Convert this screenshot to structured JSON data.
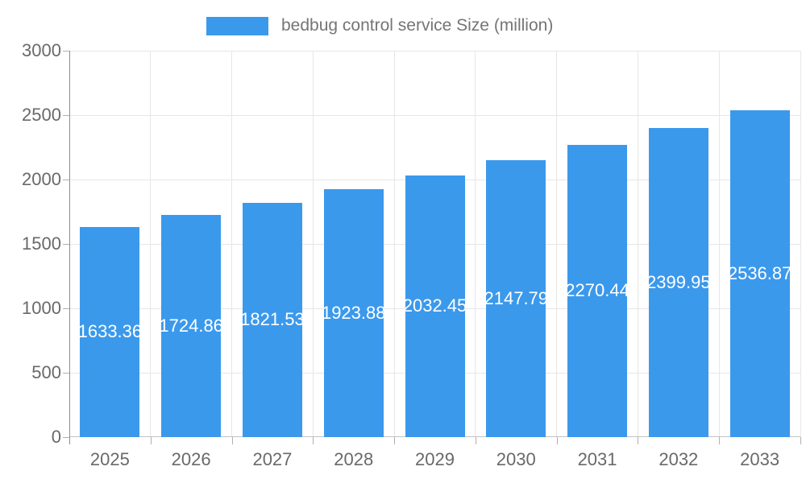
{
  "legend": {
    "label": "bedbug control service Size (million)",
    "swatch_color": "#3b99ec"
  },
  "chart_data": {
    "type": "bar",
    "title": "",
    "xlabel": "",
    "ylabel": "",
    "categories": [
      "2025",
      "2026",
      "2027",
      "2028",
      "2029",
      "2030",
      "2031",
      "2032",
      "2033"
    ],
    "series": [
      {
        "name": "bedbug control service Size (million)",
        "values": [
          1633.36,
          1724.86,
          1821.53,
          1923.88,
          2032.45,
          2147.79,
          2270.44,
          2399.95,
          2536.87
        ]
      }
    ],
    "value_labels": [
      "1633.36",
      "1724.86",
      "1821.53",
      "1923.88",
      "2032.45",
      "2147.79",
      "2270.44",
      "2399.95",
      "2536.87"
    ],
    "ylim": [
      0,
      3000
    ],
    "yticks": [
      0,
      500,
      1000,
      1500,
      2000,
      2500,
      3000
    ],
    "grid": true,
    "legend_position": "top",
    "bar_color": "#3b99ec",
    "value_label_color": "#ffffff"
  },
  "colors": {
    "bar": "#3b99ec",
    "grid_line": "#e6e6e6",
    "y_axis_line": "#8f8f8f",
    "x_axis_line": "#c2c2c2",
    "tick": "#b0b0b0",
    "axis_text": "#696969",
    "legend_text": "#757575",
    "background": "#ffffff"
  }
}
